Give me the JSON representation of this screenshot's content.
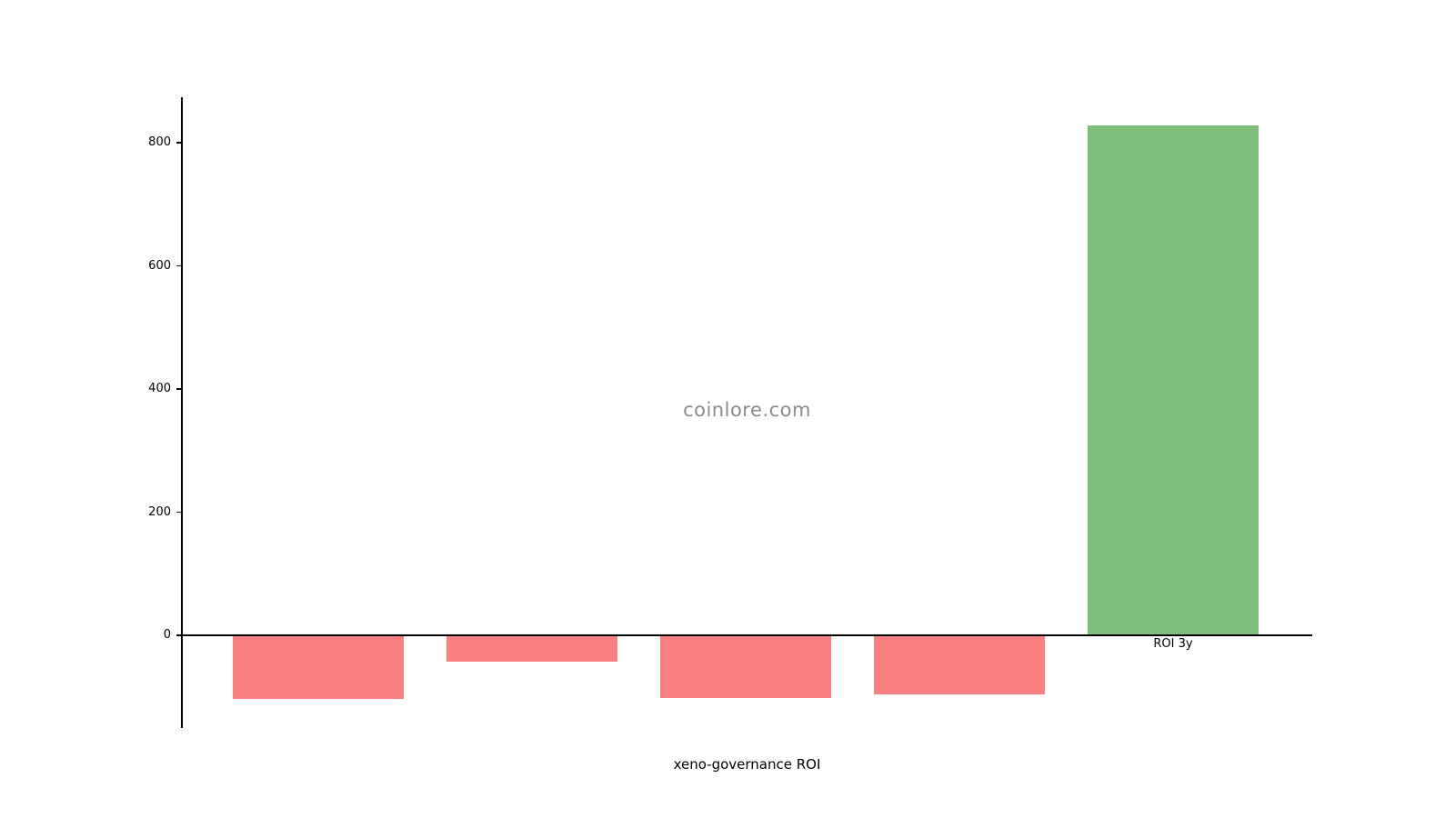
{
  "page": {
    "background": "#ffffff"
  },
  "watermark": {
    "text": "coinlore.com",
    "color": "#8a8a8a"
  },
  "chart_data": {
    "type": "bar",
    "title": "xeno-governance ROI",
    "categories": [
      "",
      "",
      "",
      "",
      "ROI 3y"
    ],
    "values": [
      -104,
      -43,
      -102,
      -96,
      828
    ],
    "yticks": [
      0,
      200,
      400,
      600,
      800
    ],
    "ylim": [
      -150,
      875
    ],
    "xlabel": "xeno-governance ROI",
    "ylabel": "",
    "grid": false,
    "legend_position": "none",
    "colors": {
      "positive_bar": "#7ebf7d",
      "negative_bar": "#f98080",
      "axis": "#000000",
      "tick_label": "#000000"
    }
  }
}
